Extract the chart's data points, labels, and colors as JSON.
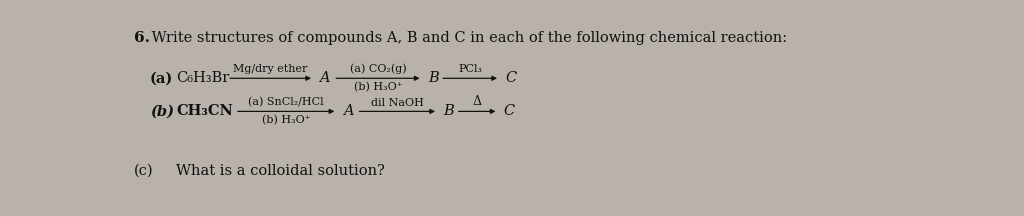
{
  "title_number": "6.",
  "title_text": " Write structures of compounds A, B and C in each of the following chemical reaction:",
  "background_color": "#b8b2aa",
  "text_color": "#111111",
  "row_a_label": "(a)",
  "row_a_start": "C₆H₃Br",
  "row_a_arrow1_top": "Mg/dry ether",
  "row_a_mid": "A",
  "row_a_arrow2_top": "(a) CO₂(g)",
  "row_a_arrow2_bottom": "(b) H₃O⁺",
  "row_a_mid2": "B",
  "row_a_arrow3_top": "PCl₃",
  "row_a_end": "C",
  "row_b_label": "(b)",
  "row_b_start": "CH₃CN",
  "row_b_arrow1_top": "(a) SnCl₂/HCl",
  "row_b_arrow1_bottom": "(b) H₃O⁺",
  "row_b_mid": "A",
  "row_b_arrow2_top": "dil NaOH",
  "row_b_mid2": "B",
  "row_b_arrow3_top": "Δ",
  "row_b_end": "C",
  "row_c_label": "(c)",
  "row_c_text": "What is a colloidal solution?"
}
